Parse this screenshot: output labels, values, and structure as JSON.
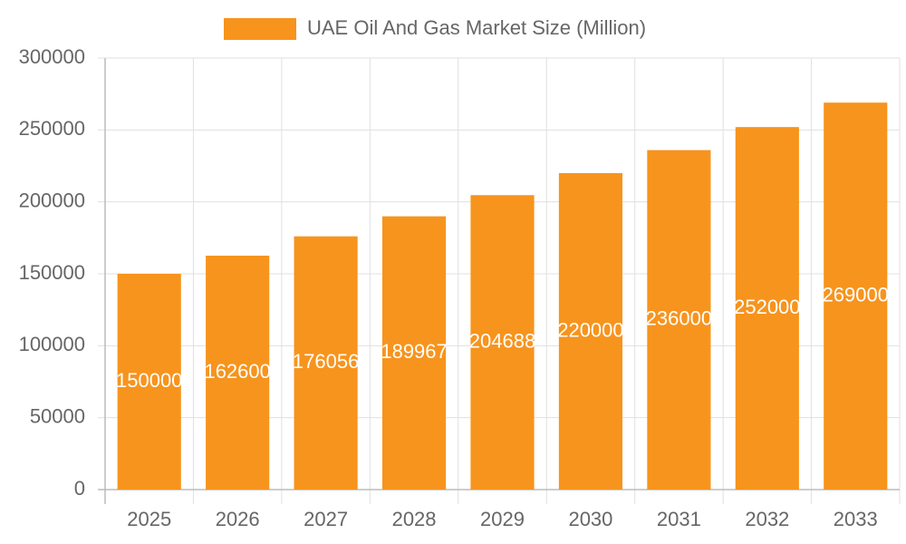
{
  "chart_data": {
    "type": "bar",
    "categories": [
      "2025",
      "2026",
      "2027",
      "2028",
      "2029",
      "2030",
      "2031",
      "2032",
      "2033"
    ],
    "series": [
      {
        "name": "UAE Oil And Gas Market Size (Million)",
        "color": "#f7941d",
        "values": [
          150000,
          162600,
          176056,
          189967,
          204688,
          220000,
          236000,
          252000,
          269000
        ]
      }
    ],
    "ylim": [
      0,
      300000
    ],
    "yticks": [
      0,
      50000,
      100000,
      150000,
      200000,
      250000,
      300000
    ],
    "grid": true,
    "legend": "top"
  }
}
